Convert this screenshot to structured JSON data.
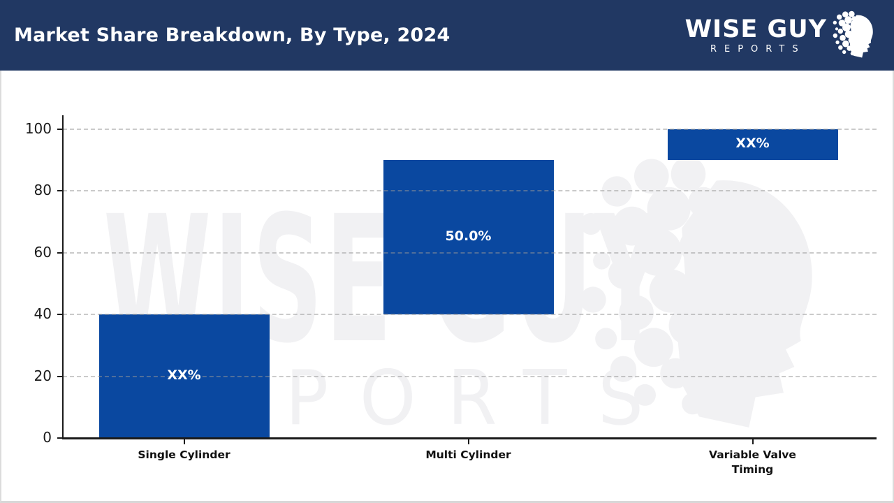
{
  "header": {
    "title": "Market Share Breakdown, By Type, 2024",
    "bg_color": "#213863",
    "logo": {
      "line1": "WISE GUY",
      "line2": "REPORTS"
    }
  },
  "watermark": {
    "line1": "WISE GUY",
    "line2": "REPORTS"
  },
  "chart_data": {
    "type": "bar",
    "variant": "floating-waterfall-segments",
    "title": "Market Share Breakdown, By Type, 2024",
    "categories": [
      "Single Cylinder",
      "Multi Cylinder",
      "Variable Valve Timing"
    ],
    "segments": [
      {
        "category": "Single Cylinder",
        "start": 0,
        "end": 40,
        "label": "XX%"
      },
      {
        "category": "Multi Cylinder",
        "start": 40,
        "end": 90,
        "label": "50.0%"
      },
      {
        "category": "Variable Valve Timing",
        "start": 90,
        "end": 100,
        "label": "XX%"
      }
    ],
    "ylabel": "",
    "xlabel": "",
    "ylim": [
      0,
      100
    ],
    "yticks": [
      0,
      20,
      40,
      60,
      80,
      100
    ],
    "grid": "horizontal-dashed",
    "legend": "none",
    "bar_color": "#0A48A0",
    "bar_label_color": "#ffffff",
    "axis_color": "#1a1a1a"
  }
}
